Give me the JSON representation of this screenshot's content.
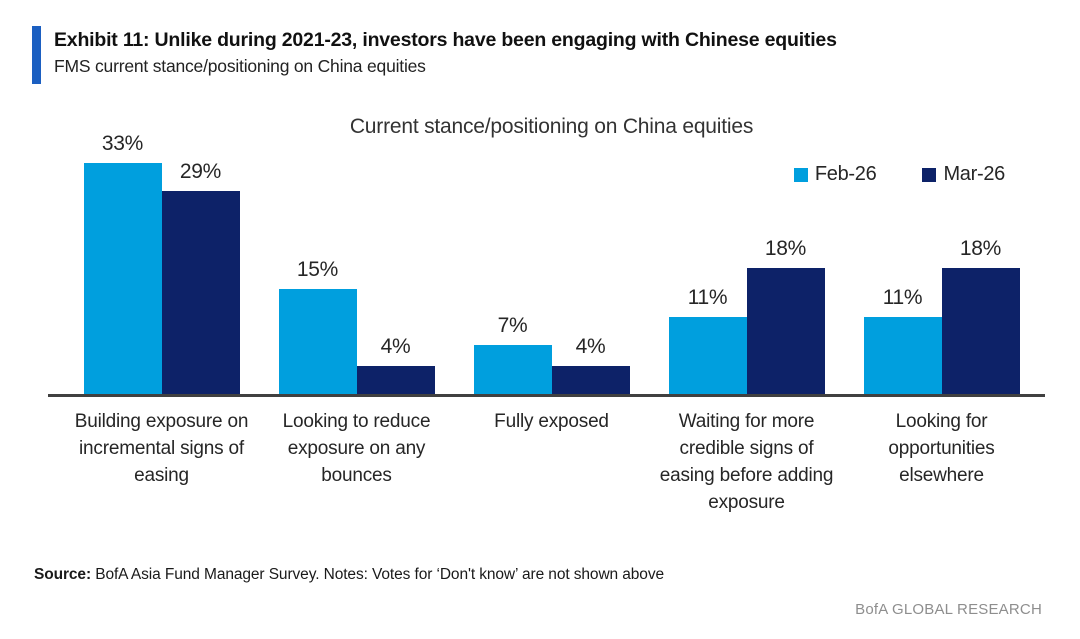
{
  "header": {
    "exhibit_title": "Exhibit 11: Unlike during 2021-23, investors have been engaging with Chinese equities",
    "subtitle": "FMS current stance/positioning on China equities",
    "accent_color": "#1B5FC1"
  },
  "chart_data": {
    "type": "bar",
    "title": "Current stance/positioning on China equities",
    "categories": [
      "Building exposure on incremental signs of easing",
      "Looking to reduce exposure on any bounces",
      "Fully exposed",
      "Waiting for more credible signs of easing before adding exposure",
      "Looking for opportunities elsewhere"
    ],
    "series": [
      {
        "name": "Feb-26",
        "color": "#009FDE",
        "values": [
          33,
          15,
          7,
          11,
          11
        ]
      },
      {
        "name": "Mar-26",
        "color": "#0D2268",
        "values": [
          29,
          4,
          4,
          18,
          18
        ]
      }
    ],
    "value_suffix": "%",
    "ylim": [
      0,
      35
    ],
    "grid": false,
    "legend_position": "top-right",
    "data_labels": true,
    "axis_color": "#404040"
  },
  "footer": {
    "source_label": "Source:",
    "source_text": " BofA Asia Fund Manager Survey. Notes: Votes for ‘Don't know’ are not shown above",
    "brand": "BofA GLOBAL RESEARCH"
  }
}
